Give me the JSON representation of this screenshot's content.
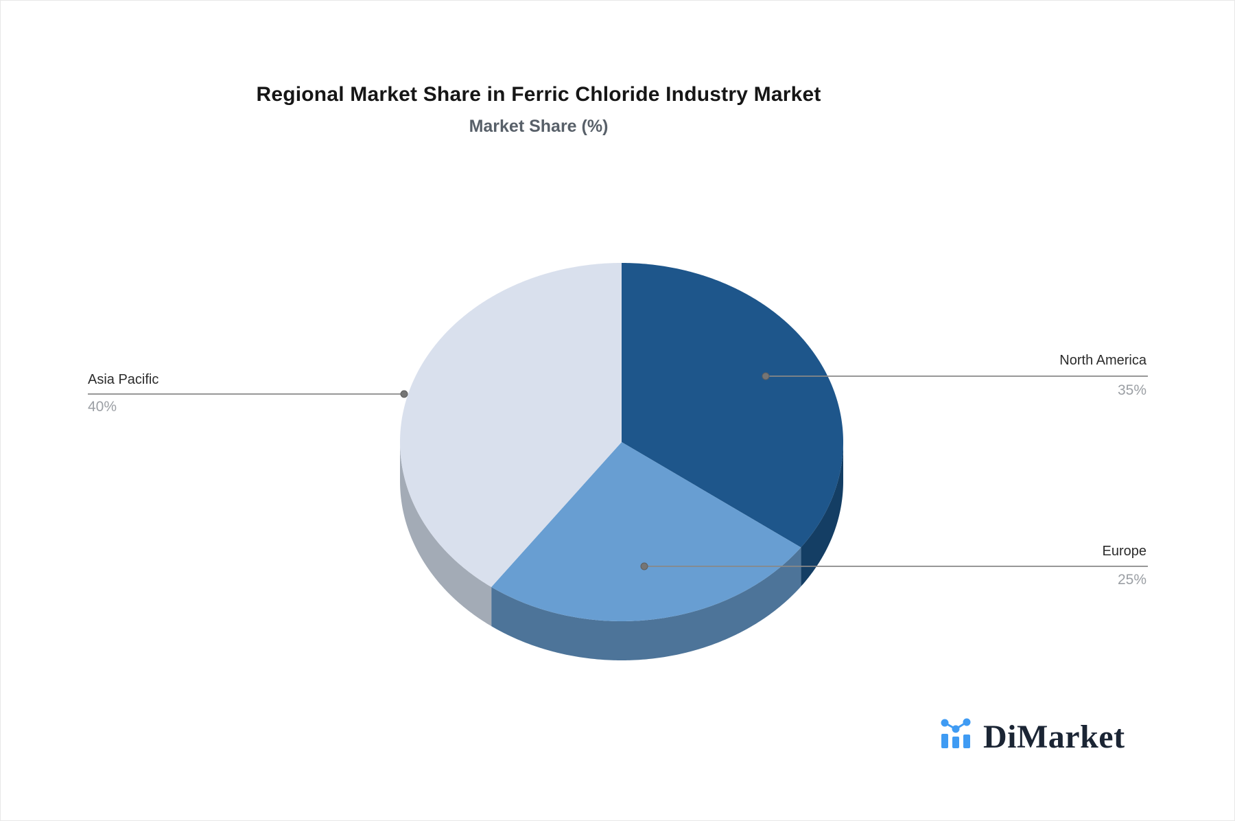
{
  "chart_data": {
    "type": "pie",
    "title": "Regional Market Share in Ferric Chloride Industry Market",
    "subtitle": "Market Share (%)",
    "unit": "%",
    "style": "3d-pie",
    "start_angle_deg": 90,
    "direction": "clockwise",
    "legend": "none",
    "labels": "outside-with-leader-lines",
    "slices": [
      {
        "label": "North America",
        "value": 35,
        "pct_label": "35%",
        "color": "#1e568b",
        "side_color": "#143e64",
        "label_side": "right"
      },
      {
        "label": "Europe",
        "value": 25,
        "pct_label": "25%",
        "color": "#689ed2",
        "side_color": "#4d7499",
        "label_side": "right"
      },
      {
        "label": "Asia Pacific",
        "value": 40,
        "pct_label": "40%",
        "color": "#d9e0ed",
        "side_color": "#a3abb6",
        "label_side": "left"
      }
    ]
  },
  "brand": {
    "name": "DiMarket"
  },
  "colors": {
    "leader_line": "#888888",
    "dot": "#757575",
    "label_text": "#2b2b2b",
    "pct_text": "#9b9fa4",
    "brand_icon": "#3f9bf3",
    "brand_text": "#1b2534",
    "page_border": "#e7e7e7"
  }
}
